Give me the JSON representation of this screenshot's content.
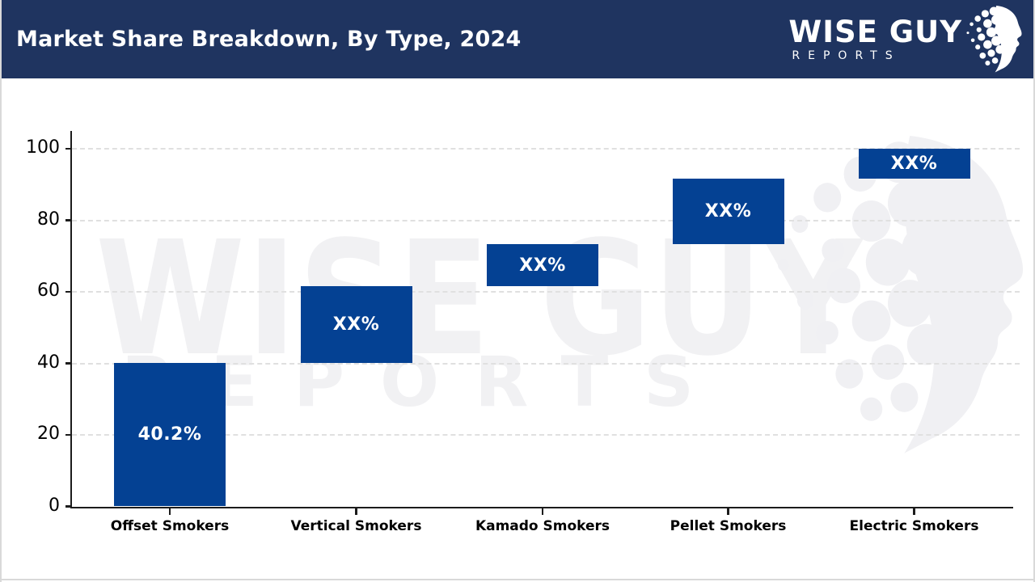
{
  "header": {
    "title": "Market Share Breakdown, By Type, 2024",
    "brand": {
      "line1": "WISE GUY",
      "line2": "REPORTS"
    }
  },
  "watermark": {
    "line1": "WISE GUY",
    "line2": "REPORTS"
  },
  "icons": {
    "brand_head": "wise-guy-dotted-head-profile"
  },
  "colors": {
    "header_bg": "#1f3460",
    "bar": "#044193",
    "axis": "#1c1c1c",
    "grid": "#e0e0e0",
    "watermark": "#f1f1f3"
  },
  "chart_data": {
    "type": "bar",
    "subtype": "waterfall",
    "title": "Market Share Breakdown, By Type, 2024",
    "xlabel": "",
    "ylabel": "",
    "categories": [
      "Offset Smokers",
      "Vertical Smokers",
      "Kamado Smokers",
      "Pellet Smokers",
      "Electric Smokers"
    ],
    "segments": [
      {
        "category": "Offset Smokers",
        "start": 0,
        "end": 40.2,
        "label": "40.2%"
      },
      {
        "category": "Vertical Smokers",
        "start": 40.2,
        "end": 61.5,
        "label": "XX%"
      },
      {
        "category": "Kamado Smokers",
        "start": 61.5,
        "end": 73.3,
        "label": "XX%"
      },
      {
        "category": "Pellet Smokers",
        "start": 73.3,
        "end": 91.6,
        "label": "XX%"
      },
      {
        "category": "Electric Smokers",
        "start": 91.6,
        "end": 100,
        "label": "XX%"
      }
    ],
    "yticks": [
      0,
      20,
      40,
      60,
      80,
      100
    ],
    "ylim": [
      0,
      105
    ],
    "bar_color": "#044193",
    "grid": "dashed-horizontal",
    "legend": "none"
  }
}
